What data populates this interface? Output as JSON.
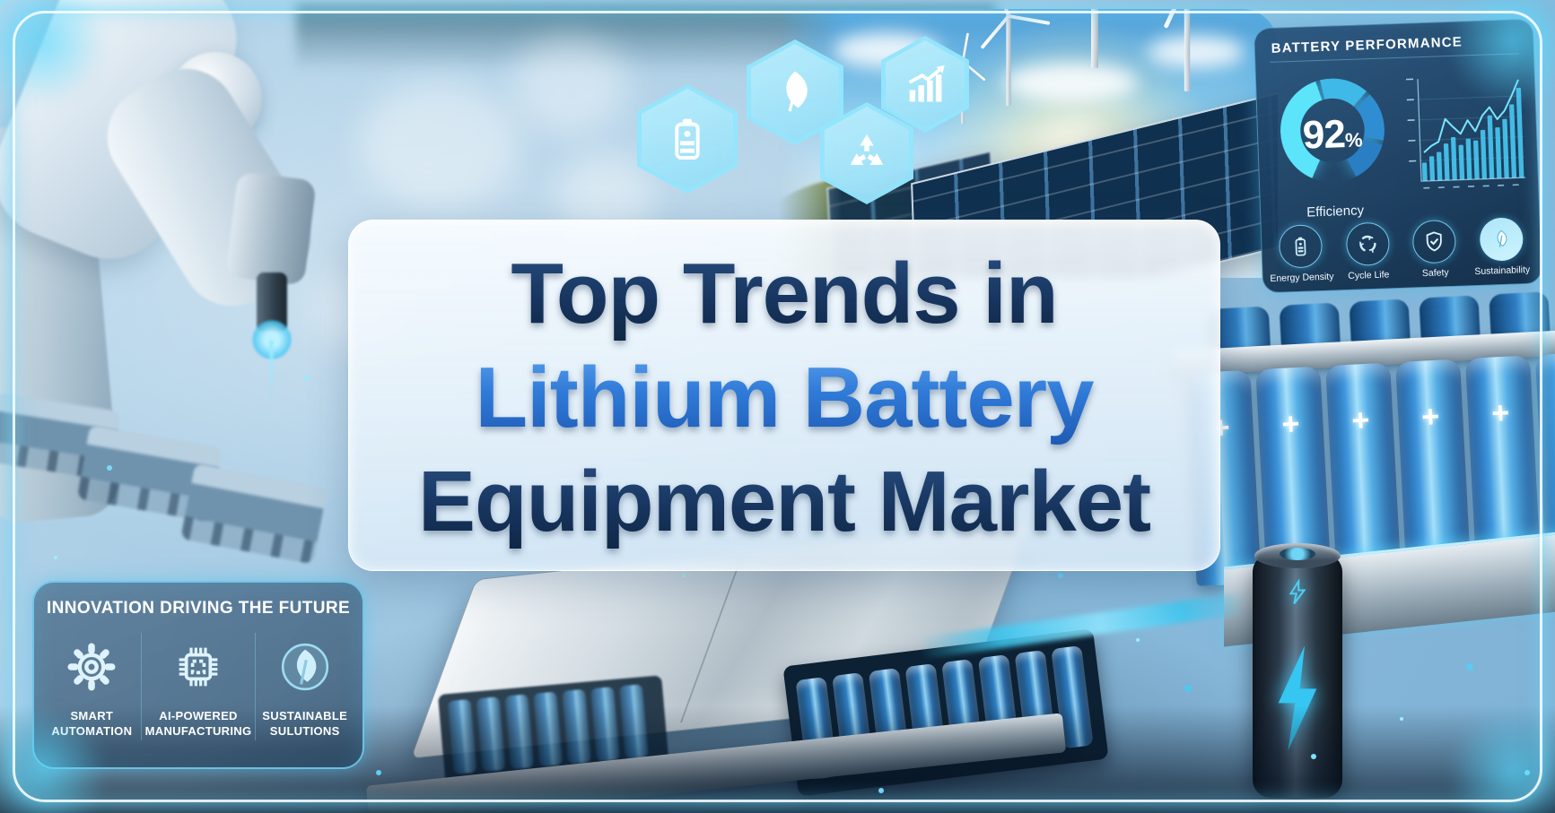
{
  "hero": {
    "title_line1": "Top Trends in",
    "title_line2": "Lithium Battery",
    "title_line3": "Equipment Market"
  },
  "performance_panel": {
    "title": "BATTERY PERFORMANCE",
    "gauge": {
      "value": "92",
      "unit": "%",
      "label": "Efficiency",
      "percent": 92
    },
    "metrics": [
      {
        "icon": "battery-icon",
        "label": "Energy Density"
      },
      {
        "icon": "cycle-icon",
        "label": "Cycle Life"
      },
      {
        "icon": "shield-icon",
        "label": "Safety"
      },
      {
        "icon": "leaf-icon",
        "label": "Sustainability"
      }
    ]
  },
  "chart_data": {
    "type": "bar",
    "title": "",
    "xlabel": "",
    "ylabel": "",
    "ylim": [
      0,
      100
    ],
    "x": [
      1,
      2,
      3,
      4,
      5,
      6,
      7,
      8,
      9,
      10,
      11,
      12,
      13,
      14
    ],
    "series": [
      {
        "name": "output-bars",
        "type": "bar",
        "values": [
          18,
          24,
          28,
          36,
          42,
          34,
          40,
          38,
          48,
          62,
          50,
          58,
          72,
          88
        ]
      },
      {
        "name": "trend-line",
        "type": "line",
        "values": [
          28,
          34,
          38,
          60,
          52,
          45,
          58,
          47,
          62,
          70,
          58,
          66,
          80,
          96
        ]
      }
    ],
    "legend": [],
    "grid": true,
    "bar_color": "#46c6ef",
    "line_color": "#7ae6ff"
  },
  "innovation_panel": {
    "title": "INNOVATION DRIVING THE FUTURE",
    "items": [
      {
        "icon": "gear-icon",
        "label_line1": "SMART",
        "label_line2": "AUTOMATION"
      },
      {
        "icon": "chip-icon",
        "label_line1": "AI-POWERED",
        "label_line2": "MANUFACTURING"
      },
      {
        "icon": "leaf-icon",
        "label_line1": "SUSTAINABLE",
        "label_line2": "SULUTIONS"
      }
    ]
  },
  "hex_icons": [
    {
      "icon": "battery-icon"
    },
    {
      "icon": "leaf-icon"
    },
    {
      "icon": "recycle-icon"
    },
    {
      "icon": "growth-chart-icon"
    }
  ],
  "background": {
    "battery_plus": "+"
  },
  "colors": {
    "accent_cyan": "#45d2f5",
    "accent_blue": "#2f7ad8",
    "navy_text": "#16355e",
    "panel_navy": "#15436b",
    "frame_glow": "#7fdcff"
  }
}
